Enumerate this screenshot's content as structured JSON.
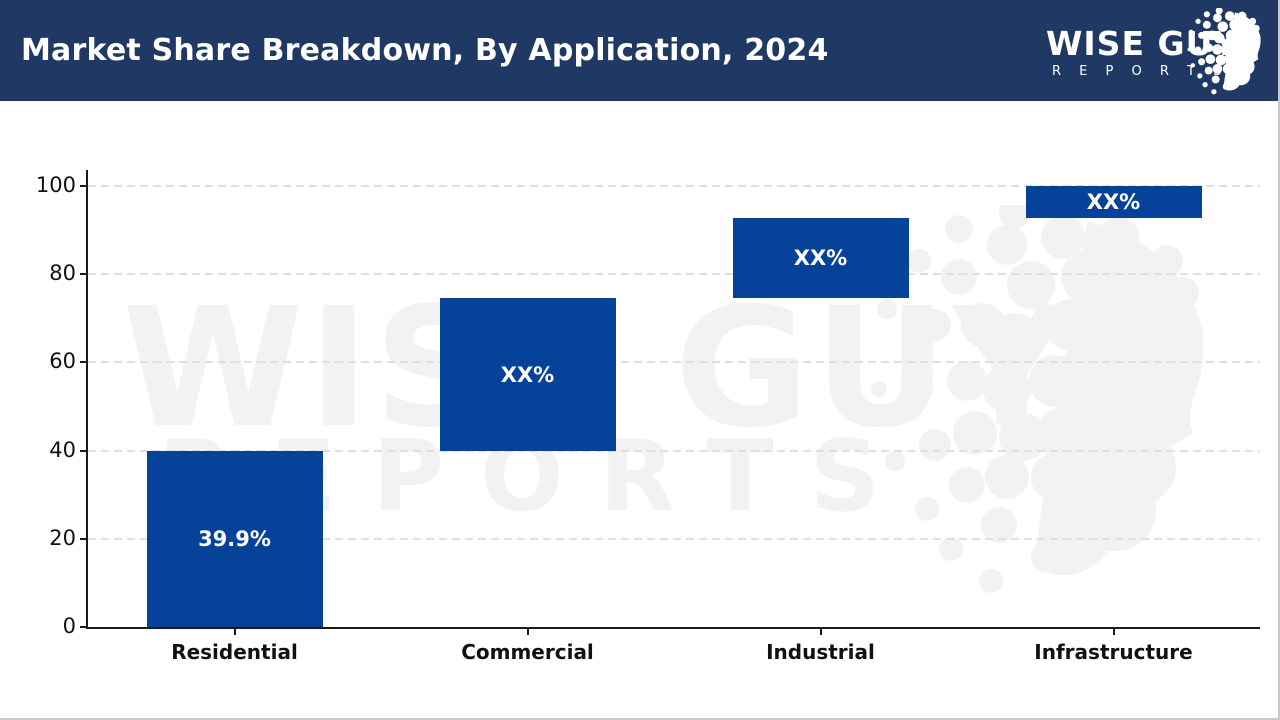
{
  "header": {
    "title": "Market Share Breakdown, By Application, 2024",
    "logo": {
      "line1": "WISE GUY",
      "line2": "R E P O R T S"
    }
  },
  "watermark": {
    "line1": "WISE GUY",
    "line2": "REPORTS"
  },
  "chart_data": {
    "type": "bar",
    "subtype": "waterfall",
    "title": "Market Share Breakdown, By Application, 2024",
    "categories": [
      "Residential",
      "Commercial",
      "Industrial",
      "Infrastructure"
    ],
    "segments": [
      {
        "category": "Residential",
        "start": 0,
        "end": 39.9,
        "label": "39.9%"
      },
      {
        "category": "Commercial",
        "start": 39.9,
        "end": 74.5,
        "label": "XX%"
      },
      {
        "category": "Industrial",
        "start": 74.5,
        "end": 92.8,
        "label": "XX%"
      },
      {
        "category": "Infrastructure",
        "start": 92.8,
        "end": 100,
        "label": "XX%"
      }
    ],
    "yticks": [
      0,
      20,
      40,
      60,
      80,
      100
    ],
    "ylim": [
      0,
      103.6
    ],
    "xlabel": "",
    "ylabel": "",
    "grid": "horizontal-dashed",
    "legend": "none",
    "colors": {
      "bar": "#06429a",
      "bar_label": "#ffffff",
      "header_bg": "#1f3864",
      "grid": "#dfdfdf",
      "axis": "#1a1a1a",
      "tick_label": "#111111",
      "watermark": "#f2f2f3"
    }
  }
}
